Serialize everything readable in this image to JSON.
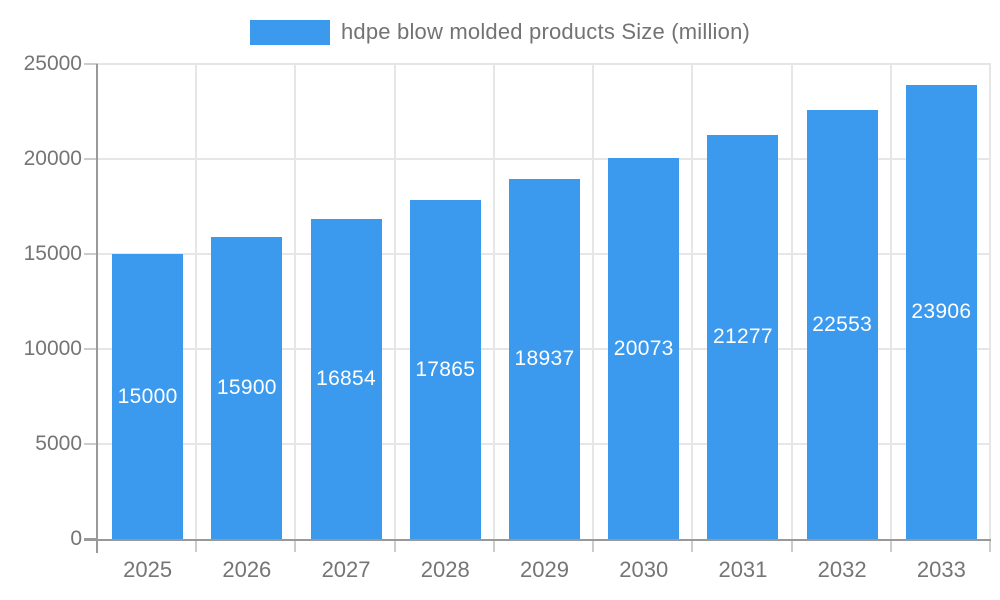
{
  "chart_data": {
    "type": "bar",
    "legend": "hdpe blow molded products Size (million)",
    "legend_position": "top",
    "categories": [
      "2025",
      "2026",
      "2027",
      "2028",
      "2029",
      "2030",
      "2031",
      "2032",
      "2033"
    ],
    "values": [
      15000,
      15900,
      16854,
      17865,
      18937,
      20073,
      21277,
      22553,
      23906
    ],
    "yticks": [
      0,
      5000,
      10000,
      15000,
      20000,
      25000
    ],
    "ylim": [
      0,
      25000
    ],
    "xlabel": "",
    "ylabel": "",
    "grid": "on",
    "colors": {
      "bar": "#3b99ee",
      "bar_label": "#ffffff",
      "axis_line": "#999999",
      "grid_line": "#e6e6e6",
      "tick_line": "#cccccc",
      "axis_text": "#757575",
      "legend_text": "#737373",
      "background": "#ffffff"
    }
  }
}
